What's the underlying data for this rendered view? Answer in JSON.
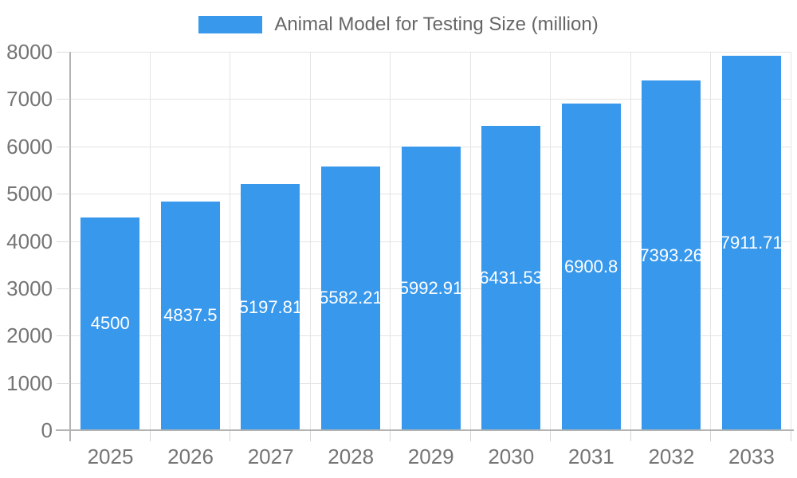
{
  "legend": {
    "label": "Animal Model for Testing Size (million)"
  },
  "colors": {
    "bar": "#3898ec",
    "legend_text": "#666666",
    "axis_text": "#757575",
    "bar_label_text": "#ffffff",
    "grid_line": "#e4e4e4",
    "axis_line": "#b3b3b3",
    "background": "#ffffff"
  },
  "chart_data": {
    "type": "bar",
    "title": "Animal Model for Testing Size (million)",
    "categories": [
      "2025",
      "2026",
      "2027",
      "2028",
      "2029",
      "2030",
      "2031",
      "2032",
      "2033"
    ],
    "values": [
      4500,
      4837.5,
      5197.81,
      5582.21,
      5992.91,
      6431.53,
      6900.8,
      7393.26,
      7911.71
    ],
    "value_labels": [
      "4500",
      "4837.5",
      "5197.81",
      "5582.21",
      "5992.91",
      "6431.53",
      "6900.8",
      "7393.26",
      "7911.71"
    ],
    "xlabel": "",
    "ylabel": "",
    "ylim": [
      0,
      8000
    ],
    "ytick_step": 1000,
    "ytick_labels": [
      "0",
      "1000",
      "2000",
      "3000",
      "4000",
      "5000",
      "6000",
      "7000",
      "8000"
    ],
    "grid": true,
    "legend_position": "top",
    "bar_color": "#3898ec",
    "series_name": "Animal Model for Testing Size (million)"
  }
}
